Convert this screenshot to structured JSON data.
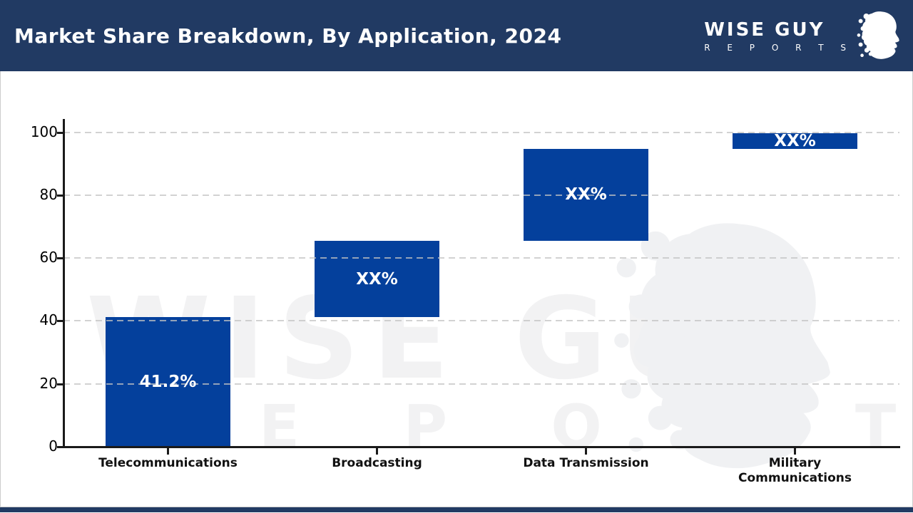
{
  "header": {
    "title": "Market Share Breakdown, By Application, 2024",
    "logo": {
      "line1": "WISE GUY",
      "line2": "R E P O R T S"
    }
  },
  "watermark": {
    "line1": "WISE GUY",
    "line2": "R E P O R T S"
  },
  "chart_data": {
    "type": "bar",
    "subtype": "waterfall",
    "title": "Market Share Breakdown, By Application, 2024",
    "categories": [
      "Telecommunications",
      "Broadcasting",
      "Data Transmission",
      "Military Communications"
    ],
    "series": [
      {
        "name": "Market Share (%)",
        "segments": [
          {
            "category": "Telecommunications",
            "start": 0,
            "end": 41.2,
            "label": "41.2%"
          },
          {
            "category": "Broadcasting",
            "start": 41.2,
            "end": 65.4,
            "label": "XX%"
          },
          {
            "category": "Data Transmission",
            "start": 65.4,
            "end": 94.8,
            "label": "XX%"
          },
          {
            "category": "Military Communications",
            "start": 94.8,
            "end": 99.6,
            "label": "XX%"
          }
        ]
      }
    ],
    "xlabel": "",
    "ylabel": "",
    "yticks": [
      0,
      20,
      40,
      60,
      80,
      100
    ],
    "ylim": [
      0,
      104
    ],
    "grid": {
      "axis": "y",
      "style": "dashed",
      "drawn_over_bars": true
    },
    "legend": "none",
    "bar_color": "#04409C",
    "bar_label_color": "#FFFFFF"
  },
  "colors": {
    "header_bg": "#213A63",
    "footer_bg": "#213A63",
    "bar_blue": "#04409C",
    "axis": "#1A1A1A",
    "tick_label": "#000000",
    "gridline": "#C8C8C8",
    "watermark": "#F2F2F3",
    "page_border": "#CCCCCC",
    "title_text": "#FFFFFF"
  }
}
